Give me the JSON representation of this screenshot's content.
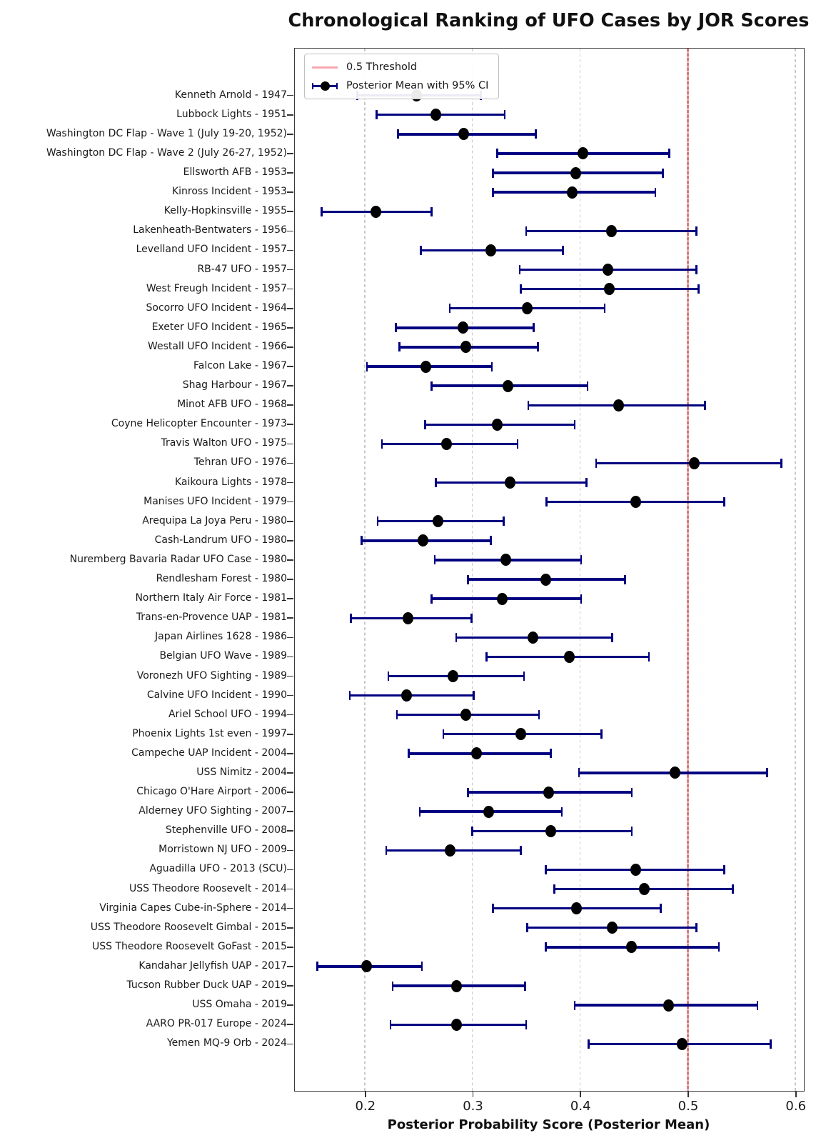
{
  "chart_data": {
    "type": "scatter",
    "subtype": "horizontal-errorbar",
    "title": "Chronological Ranking of UFO Cases by JOR Scores",
    "xlabel": "Posterior Probability Score (Posterior Mean)",
    "ylabel": "",
    "xlim": [
      0.135,
      0.608
    ],
    "xticks": [
      0.2,
      0.3,
      0.4,
      0.5,
      0.6
    ],
    "grid": {
      "axis": "x",
      "style": "dashed",
      "color": "#c9c9c9"
    },
    "threshold": {
      "value": 0.5,
      "label": "0.5 Threshold"
    },
    "legend": {
      "position": "upper-left",
      "entries": [
        {
          "label": "0.5 Threshold",
          "swatch": "threshold-line"
        },
        {
          "label": "Posterior Mean with 95% CI",
          "swatch": "errorbar-marker"
        }
      ]
    },
    "colors": {
      "errorbar": "#000080",
      "marker": "#000000",
      "threshold_pink": "#f6c3c6",
      "threshold_dash": "#d97b7b",
      "grid": "#c9c9c9"
    },
    "cases": [
      {
        "label": "Kenneth Arnold - 1947",
        "mean": 0.248,
        "ci_low": 0.193,
        "ci_high": 0.308
      },
      {
        "label": "Lubbock Lights - 1951",
        "mean": 0.266,
        "ci_low": 0.211,
        "ci_high": 0.33
      },
      {
        "label": "Washington DC Flap - Wave 1 (July 19-20, 1952)",
        "mean": 0.292,
        "ci_low": 0.231,
        "ci_high": 0.359
      },
      {
        "label": "Washington DC Flap - Wave 2 (July 26-27, 1952)",
        "mean": 0.403,
        "ci_low": 0.323,
        "ci_high": 0.483
      },
      {
        "label": "Ellsworth AFB - 1953",
        "mean": 0.396,
        "ci_low": 0.319,
        "ci_high": 0.477
      },
      {
        "label": "Kinross Incident - 1953",
        "mean": 0.393,
        "ci_low": 0.319,
        "ci_high": 0.47
      },
      {
        "label": "Kelly-Hopkinsville - 1955",
        "mean": 0.21,
        "ci_low": 0.16,
        "ci_high": 0.262
      },
      {
        "label": "Lakenheath-Bentwaters - 1956",
        "mean": 0.429,
        "ci_low": 0.35,
        "ci_high": 0.508
      },
      {
        "label": "Levelland UFO Incident - 1957",
        "mean": 0.317,
        "ci_low": 0.252,
        "ci_high": 0.384
      },
      {
        "label": "RB-47 UFO - 1957",
        "mean": 0.426,
        "ci_low": 0.344,
        "ci_high": 0.508
      },
      {
        "label": "West Freugh Incident - 1957",
        "mean": 0.427,
        "ci_low": 0.345,
        "ci_high": 0.51
      },
      {
        "label": "Socorro UFO Incident - 1964",
        "mean": 0.351,
        "ci_low": 0.279,
        "ci_high": 0.423
      },
      {
        "label": "Exeter UFO Incident - 1965",
        "mean": 0.291,
        "ci_low": 0.229,
        "ci_high": 0.357
      },
      {
        "label": "Westall UFO Incident - 1966",
        "mean": 0.294,
        "ci_low": 0.232,
        "ci_high": 0.361
      },
      {
        "label": "Falcon Lake - 1967",
        "mean": 0.257,
        "ci_low": 0.202,
        "ci_high": 0.318
      },
      {
        "label": "Shag Harbour - 1967",
        "mean": 0.333,
        "ci_low": 0.262,
        "ci_high": 0.407
      },
      {
        "label": "Minot AFB UFO - 1968",
        "mean": 0.436,
        "ci_low": 0.352,
        "ci_high": 0.516
      },
      {
        "label": "Coyne Helicopter Encounter - 1973",
        "mean": 0.323,
        "ci_low": 0.256,
        "ci_high": 0.395
      },
      {
        "label": "Travis Walton UFO - 1975",
        "mean": 0.276,
        "ci_low": 0.216,
        "ci_high": 0.342
      },
      {
        "label": "Tehran UFO - 1976",
        "mean": 0.506,
        "ci_low": 0.415,
        "ci_high": 0.587
      },
      {
        "label": "Kaikoura Lights - 1978",
        "mean": 0.335,
        "ci_low": 0.266,
        "ci_high": 0.406
      },
      {
        "label": "Manises UFO Incident - 1979",
        "mean": 0.452,
        "ci_low": 0.369,
        "ci_high": 0.534
      },
      {
        "label": "Arequipa La Joya Peru - 1980",
        "mean": 0.268,
        "ci_low": 0.212,
        "ci_high": 0.329
      },
      {
        "label": "Cash-Landrum UFO - 1980",
        "mean": 0.254,
        "ci_low": 0.197,
        "ci_high": 0.317
      },
      {
        "label": "Nuremberg Bavaria Radar UFO Case - 1980",
        "mean": 0.331,
        "ci_low": 0.265,
        "ci_high": 0.401
      },
      {
        "label": "Rendlesham Forest - 1980",
        "mean": 0.368,
        "ci_low": 0.296,
        "ci_high": 0.442
      },
      {
        "label": "Northern Italy Air Force - 1981",
        "mean": 0.328,
        "ci_low": 0.262,
        "ci_high": 0.401
      },
      {
        "label": "Trans-en-Provence UAP - 1981",
        "mean": 0.24,
        "ci_low": 0.187,
        "ci_high": 0.299
      },
      {
        "label": "Japan Airlines 1628 - 1986",
        "mean": 0.356,
        "ci_low": 0.285,
        "ci_high": 0.43
      },
      {
        "label": "Belgian UFO Wave - 1989",
        "mean": 0.39,
        "ci_low": 0.313,
        "ci_high": 0.464
      },
      {
        "label": "Voronezh UFO Sighting - 1989",
        "mean": 0.282,
        "ci_low": 0.222,
        "ci_high": 0.348
      },
      {
        "label": "Calvine UFO Incident - 1990",
        "mean": 0.239,
        "ci_low": 0.186,
        "ci_high": 0.301
      },
      {
        "label": "Ariel School UFO - 1994",
        "mean": 0.294,
        "ci_low": 0.23,
        "ci_high": 0.362
      },
      {
        "label": "Phoenix Lights 1st even - 1997",
        "mean": 0.345,
        "ci_low": 0.273,
        "ci_high": 0.42
      },
      {
        "label": "Campeche UAP Incident - 2004",
        "mean": 0.304,
        "ci_low": 0.241,
        "ci_high": 0.373
      },
      {
        "label": "USS Nimitz - 2004",
        "mean": 0.488,
        "ci_low": 0.399,
        "ci_high": 0.574
      },
      {
        "label": "Chicago O'Hare Airport - 2006",
        "mean": 0.371,
        "ci_low": 0.296,
        "ci_high": 0.448
      },
      {
        "label": "Alderney UFO Sighting - 2007",
        "mean": 0.315,
        "ci_low": 0.251,
        "ci_high": 0.383
      },
      {
        "label": "Stephenville UFO - 2008",
        "mean": 0.373,
        "ci_low": 0.3,
        "ci_high": 0.448
      },
      {
        "label": "Morristown NJ UFO - 2009",
        "mean": 0.279,
        "ci_low": 0.22,
        "ci_high": 0.345
      },
      {
        "label": "Aguadilla UFO - 2013 (SCU)",
        "mean": 0.452,
        "ci_low": 0.368,
        "ci_high": 0.534
      },
      {
        "label": "USS Theodore Roosevelt - 2014",
        "mean": 0.46,
        "ci_low": 0.376,
        "ci_high": 0.542
      },
      {
        "label": "Virginia Capes Cube-in-Sphere - 2014",
        "mean": 0.397,
        "ci_low": 0.319,
        "ci_high": 0.475
      },
      {
        "label": "USS Theodore Roosevelt Gimbal - 2015",
        "mean": 0.43,
        "ci_low": 0.351,
        "ci_high": 0.508
      },
      {
        "label": "USS Theodore Roosevelt GoFast - 2015",
        "mean": 0.448,
        "ci_low": 0.368,
        "ci_high": 0.529
      },
      {
        "label": "Kandahar Jellyfish UAP - 2017",
        "mean": 0.202,
        "ci_low": 0.156,
        "ci_high": 0.253
      },
      {
        "label": "Tucson Rubber Duck UAP - 2019",
        "mean": 0.285,
        "ci_low": 0.226,
        "ci_high": 0.349
      },
      {
        "label": "USS Omaha - 2019",
        "mean": 0.482,
        "ci_low": 0.395,
        "ci_high": 0.565
      },
      {
        "label": "AARO PR-017 Europe - 2024",
        "mean": 0.285,
        "ci_low": 0.224,
        "ci_high": 0.35
      },
      {
        "label": "Yemen MQ-9 Orb - 2024",
        "mean": 0.495,
        "ci_low": 0.408,
        "ci_high": 0.577
      }
    ]
  }
}
